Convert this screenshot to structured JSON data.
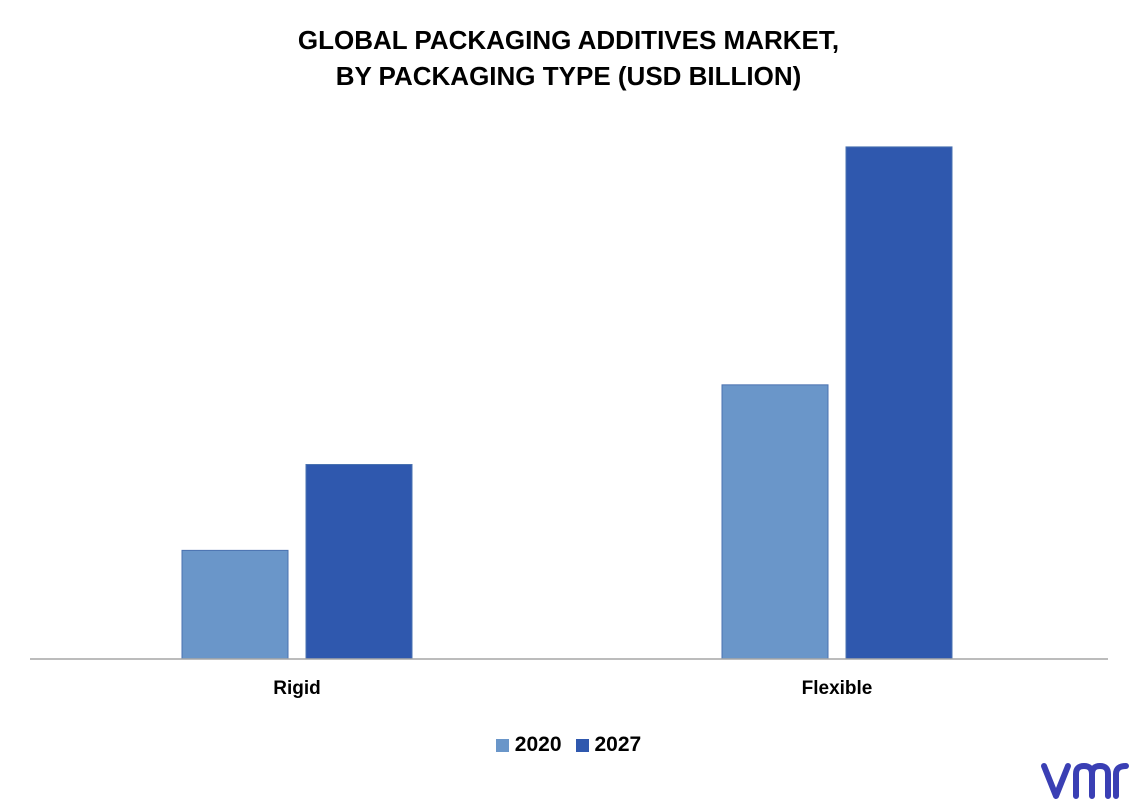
{
  "title_line1": "GLOBAL PACKAGING ADDITIVES MARKET,",
  "title_line2": "BY PACKAGING TYPE (USD BILLION)",
  "colors": {
    "series_2020": "#6a96c9",
    "series_2027": "#2f58ae",
    "axis": "#a6a6a6",
    "logo": "#3a3fb4"
  },
  "logo_icon": "vmr-logo",
  "chart_data": {
    "type": "bar",
    "title": "GLOBAL PACKAGING ADDITIVES MARKET, BY PACKAGING TYPE (USD BILLION)",
    "xlabel": "",
    "ylabel": "",
    "categories": [
      "Rigid",
      "Flexible"
    ],
    "series": [
      {
        "name": "2020",
        "values": [
          1.05,
          2.65
        ]
      },
      {
        "name": "2027",
        "values": [
          1.88,
          4.95
        ]
      }
    ],
    "ylim": [
      0,
      5.5
    ],
    "grid": false,
    "legend": "bottom-center",
    "data_labels": false
  }
}
